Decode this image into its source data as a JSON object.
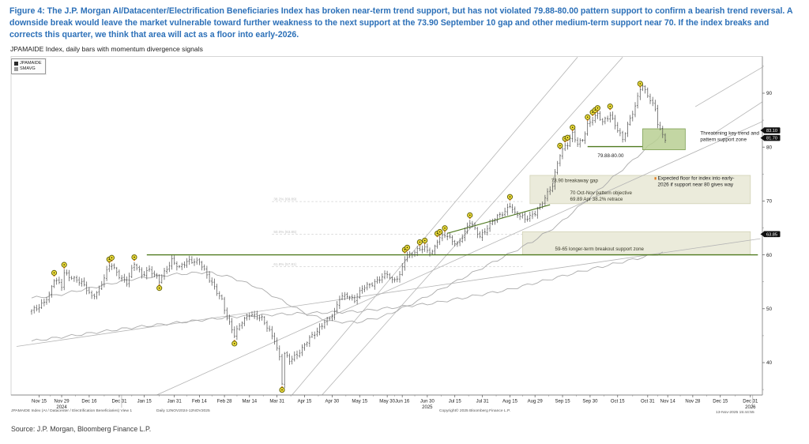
{
  "header": {
    "caption": "Figure 4: The J.P. Morgan AI/Datacenter/Electrification Beneficiaries Index has broken near-term trend support, but has not violated 79.88-80.00 pattern support to confirm a bearish trend reversal. A downside break would leave the market vulnerable toward further weakness to the next support at the 73.90 September 10 gap and other medium-term support near 70. If the index breaks and corrects this quarter, we think that area will act as a floor into early-2026.",
    "subtitle": "JPAMAIDE Index, daily bars with momentum divergence signals"
  },
  "source": {
    "text": "Source: J.P. Morgan, Bloomberg Finance L.P."
  },
  "chart_data": {
    "type": "bar",
    "subtype": "daily-ohlc-bars-with-signals",
    "title": "JPAMAIDE Index, daily bars with momentum divergence signals",
    "last_price": 81.7,
    "legend": {
      "items": [
        {
          "label": "JPAMAIDE",
          "color": "#2b2b2b"
        },
        {
          "label": "SMAVG",
          "color": "#9a9a9a"
        }
      ]
    },
    "y_axis": {
      "major_ticks": [
        90,
        80,
        70,
        60,
        50,
        40
      ],
      "minor_ticks": [
        95,
        85,
        75,
        65,
        55,
        45,
        35
      ]
    },
    "axis_tags": [
      {
        "value": "83.10",
        "price": 83.1
      },
      {
        "value": "81.70",
        "price": 81.7
      },
      {
        "value": "63.85",
        "price": 63.85
      }
    ],
    "x_axis": {
      "ticks": [
        {
          "label": "Nov 15",
          "day": 3
        },
        {
          "label": "Nov 29",
          "day": 12
        },
        {
          "label": "Dec 16",
          "day": 23
        },
        {
          "label": "Dec 31",
          "day": 35
        },
        {
          "label": "Jan 15",
          "day": 45
        },
        {
          "label": "Jan 31",
          "day": 57
        },
        {
          "label": "Feb 14",
          "day": 67
        },
        {
          "label": "Feb 28",
          "day": 77
        },
        {
          "label": "Mar 14",
          "day": 87
        },
        {
          "label": "Mar 31",
          "day": 98
        },
        {
          "label": "Apr 15",
          "day": 109
        },
        {
          "label": "Apr 30",
          "day": 120
        },
        {
          "label": "May 15",
          "day": 131
        },
        {
          "label": "May 30",
          "day": 142
        },
        {
          "label": "Jun 16",
          "day": 148
        },
        {
          "label": "Jun 30",
          "day": 158
        },
        {
          "label": "Jul 15",
          "day": 169
        },
        {
          "label": "Jul 31",
          "day": 180
        },
        {
          "label": "Aug 15",
          "day": 191
        },
        {
          "label": "Aug 29",
          "day": 201
        },
        {
          "label": "Sep 15",
          "day": 212
        },
        {
          "label": "Sep 30",
          "day": 223
        },
        {
          "label": "Oct 15",
          "day": 234
        },
        {
          "label": "Oct 31",
          "day": 246
        },
        {
          "label": "Nov 14",
          "day": 254
        },
        {
          "label": "Nov 28",
          "day": 264
        },
        {
          "label": "Dec 15",
          "day": 275
        },
        {
          "label": "Dec 31",
          "day": 287
        }
      ],
      "years": [
        {
          "label": "2024",
          "day": 12
        },
        {
          "label": "2025",
          "day": 158
        },
        {
          "label": "2026",
          "day": 287
        }
      ],
      "year_separators": [
        35,
        287
      ]
    },
    "price_path": [
      [
        0,
        49.5
      ],
      [
        3,
        50.5
      ],
      [
        7,
        52.5
      ],
      [
        9,
        55.3
      ],
      [
        12,
        54.2
      ],
      [
        13,
        56.8
      ],
      [
        17,
        55.6
      ],
      [
        21,
        54.2
      ],
      [
        24,
        52.4
      ],
      [
        27,
        53.6
      ],
      [
        31,
        57.8
      ],
      [
        32,
        58.1
      ],
      [
        34,
        56.8
      ],
      [
        38,
        54.8
      ],
      [
        41,
        58.2
      ],
      [
        44,
        56.4
      ],
      [
        47,
        57.4
      ],
      [
        51,
        55.0
      ],
      [
        56,
        59.2
      ],
      [
        59,
        57.6
      ],
      [
        63,
        58.8
      ],
      [
        67,
        59.0
      ],
      [
        71,
        55.2
      ],
      [
        76,
        51.8
      ],
      [
        78,
        48.5
      ],
      [
        81,
        44.9
      ],
      [
        84,
        47.6
      ],
      [
        87,
        49.2
      ],
      [
        92,
        48.0
      ],
      [
        97,
        44.4
      ],
      [
        99,
        41.0
      ],
      [
        100,
        36.3
      ],
      [
        101,
        41.5
      ],
      [
        103,
        40.2
      ],
      [
        106,
        41.6
      ],
      [
        110,
        44.0
      ],
      [
        114,
        45.6
      ],
      [
        117,
        47.8
      ],
      [
        121,
        49.2
      ],
      [
        123,
        51.8
      ],
      [
        126,
        52.6
      ],
      [
        129,
        51.8
      ],
      [
        132,
        53.6
      ],
      [
        136,
        54.6
      ],
      [
        139,
        55.8
      ],
      [
        142,
        56.4
      ],
      [
        144,
        54.9
      ],
      [
        147,
        56.2
      ],
      [
        149,
        59.6
      ],
      [
        150,
        60.0
      ],
      [
        153,
        60.3
      ],
      [
        155,
        61.0
      ],
      [
        157,
        61.3
      ],
      [
        160,
        60.6
      ],
      [
        162,
        62.6
      ],
      [
        163,
        62.9
      ],
      [
        165,
        63.6
      ],
      [
        168,
        62.8
      ],
      [
        170,
        62.1
      ],
      [
        173,
        64.0
      ],
      [
        175,
        66.0
      ],
      [
        179,
        63.6
      ],
      [
        182,
        65.0
      ],
      [
        186,
        67.0
      ],
      [
        189,
        68.2
      ],
      [
        191,
        69.4
      ],
      [
        193,
        67.6
      ],
      [
        197,
        66.6
      ],
      [
        201,
        68.0
      ],
      [
        204,
        69.6
      ],
      [
        206,
        71.2
      ],
      [
        208,
        72.9
      ],
      [
        209,
        75.2
      ],
      [
        210,
        77.2
      ],
      [
        211,
        78.9
      ],
      [
        213,
        80.2
      ],
      [
        214,
        80.4
      ],
      [
        216,
        82.3
      ],
      [
        218,
        80.6
      ],
      [
        220,
        81.6
      ],
      [
        222,
        84.2
      ],
      [
        224,
        85.1
      ],
      [
        225,
        85.5
      ],
      [
        226,
        85.9
      ],
      [
        228,
        84.6
      ],
      [
        231,
        86.2
      ],
      [
        233,
        84.2
      ],
      [
        236,
        81.2
      ],
      [
        238,
        84.0
      ],
      [
        241,
        87.8
      ],
      [
        243,
        91.0
      ],
      [
        244,
        91.4
      ],
      [
        245,
        90.2
      ],
      [
        247,
        88.6
      ],
      [
        249,
        87.0
      ],
      [
        250,
        84.6
      ],
      [
        251,
        83.4
      ],
      [
        252,
        82.4
      ],
      [
        253,
        81.7
      ]
    ],
    "signals": [
      [
        9,
        55.9,
        "h"
      ],
      [
        13,
        57.4,
        "h"
      ],
      [
        31,
        58.4,
        "h"
      ],
      [
        32,
        58.7,
        "h"
      ],
      [
        41,
        58.8,
        "h"
      ],
      [
        51,
        54.6,
        "l"
      ],
      [
        81,
        44.3,
        "l"
      ],
      [
        100,
        35.7,
        "l"
      ],
      [
        149,
        60.2,
        "h"
      ],
      [
        150,
        60.6,
        "h"
      ],
      [
        155,
        61.6,
        "h"
      ],
      [
        157,
        61.9,
        "h"
      ],
      [
        162,
        63.2,
        "h"
      ],
      [
        163,
        63.5,
        "h"
      ],
      [
        165,
        64.2,
        "h"
      ],
      [
        175,
        66.6,
        "h"
      ],
      [
        191,
        70.0,
        "h"
      ],
      [
        211,
        79.5,
        "h"
      ],
      [
        213,
        80.8,
        "h"
      ],
      [
        214,
        81.0,
        "h"
      ],
      [
        216,
        82.9,
        "h"
      ],
      [
        222,
        84.8,
        "h"
      ],
      [
        224,
        85.7,
        "h"
      ],
      [
        225,
        86.1,
        "h"
      ],
      [
        226,
        86.5,
        "h"
      ],
      [
        231,
        86.8,
        "h"
      ],
      [
        243,
        91.0,
        "h"
      ]
    ],
    "ma_fast": [
      [
        0,
        52.0
      ],
      [
        10,
        52.5
      ],
      [
        25,
        54.0
      ],
      [
        40,
        55.5
      ],
      [
        55,
        56.3
      ],
      [
        70,
        56.8
      ],
      [
        80,
        55.8
      ],
      [
        90,
        54.0
      ],
      [
        100,
        51.5
      ],
      [
        110,
        49.0
      ],
      [
        120,
        47.6
      ],
      [
        130,
        47.5
      ],
      [
        140,
        48.5
      ],
      [
        150,
        50.5
      ],
      [
        160,
        52.8
      ],
      [
        170,
        55.2
      ],
      [
        180,
        57.6
      ],
      [
        190,
        60.0
      ],
      [
        200,
        62.5
      ],
      [
        210,
        65.5
      ],
      [
        220,
        69.5
      ],
      [
        230,
        73.5
      ],
      [
        240,
        77.5
      ],
      [
        248,
        80.8
      ],
      [
        253,
        83.1
      ]
    ],
    "ma_slow": [
      [
        0,
        44.0
      ],
      [
        40,
        46.5
      ],
      [
        80,
        48.5
      ],
      [
        100,
        49.0
      ],
      [
        130,
        49.5
      ],
      [
        160,
        51.0
      ],
      [
        190,
        53.5
      ],
      [
        220,
        57.0
      ],
      [
        253,
        60.5
      ]
    ],
    "trendlines": [
      [
        104,
        34.0,
        218,
        96.7
      ],
      [
        116,
        34.0,
        236,
        96.7
      ],
      [
        50,
        34.0,
        292,
        84.8
      ],
      [
        -6,
        43.0,
        291,
        63.0
      ],
      [
        265,
        87.5,
        299,
        96.8
      ],
      [
        273,
        82.7,
        300,
        90.9
      ]
    ],
    "fib_span_days": [
      96,
      196
    ],
    "fib_levels": [
      {
        "label": "38.2% (69.89)",
        "price": 69.89
      },
      {
        "label": "50.0% (63.85)",
        "price": 63.85
      },
      {
        "label": "61.8% (57.81)",
        "price": 57.81
      }
    ],
    "levels": {
      "breakout_line": {
        "price": 60.0,
        "from_day": 46,
        "to_day": 290
      },
      "pattern_support": {
        "price": 80.1,
        "from_day": 222,
        "to_day": 244
      },
      "neckline": [
        166,
        64.0,
        207,
        69.3
      ],
      "gap_marker": {
        "day": 209,
        "p1": 73.2,
        "p2": 74.5
      }
    },
    "zones": [
      {
        "name": "expected-floor-band",
        "from_day": 199,
        "to_day": 287,
        "p1": 69.5,
        "p2": 74.75,
        "fill": "#eaead9",
        "border": "#d2d2b6"
      },
      {
        "name": "breakout-band",
        "from_day": 196,
        "to_day": 287,
        "p1": 60.05,
        "p2": 64.3,
        "fill": "#eaead9",
        "border": "#d2d2b6"
      },
      {
        "name": "key-support-box",
        "from_day": 244,
        "to_day": 261,
        "p1": 79.5,
        "p2": 83.4,
        "fill": "#b9cf93",
        "border": "#7fa055"
      }
    ],
    "annotations": [
      {
        "name": "threatening-note",
        "lines": [
          "Threatening key trend and",
          "pattern support zone"
        ],
        "day": 267,
        "price": 82.9,
        "size": 6.4,
        "color": "#1a1a1a"
      },
      {
        "name": "gap-label",
        "lines": [
          "73.90 breakaway gap"
        ],
        "day": 207.5,
        "price": 74.1,
        "size": 6.2,
        "color": "#3a3a2a"
      },
      {
        "name": "objective-label",
        "lines": [
          "70 Oct-Nov pattern objective",
          "69.89 Apr 38.2% retrace"
        ],
        "day": 215,
        "price": 71.8,
        "size": 6.2,
        "color": "#3a3a2a"
      },
      {
        "name": "expected-floor-note",
        "lines": [
          "Expected floor for index into early-",
          "2026 if support near 80 gives way"
        ],
        "day": 250,
        "price": 74.5,
        "size": 6.4,
        "color": "#1a1a1a",
        "marker": "#e07818"
      },
      {
        "name": "breakout-zone-label",
        "lines": [
          "59-65 longer-term breakout support zone"
        ],
        "day": 209,
        "price": 61.4,
        "size": 6.2,
        "color": "#3a3a2a"
      },
      {
        "name": "pattern-range-label",
        "lines": [
          "79.88-80.00"
        ],
        "day": 226,
        "price": 78.7,
        "size": 6.2,
        "color": "#1a1a1a"
      }
    ],
    "colors": {
      "bars": "#4d4d4d",
      "ma": "#ababab",
      "trendline": "#b5b5b5",
      "green_dark": "#4f7a1f",
      "signal_fill": "#f2e03c",
      "signal_ring": "#67670f",
      "signal_dot": "#e5821e",
      "tag_bg": "#101010"
    },
    "footer": {
      "left": "JPAMAIDE Index (AI / Datacenter / Electrification Beneficiaries) View 1",
      "mid": "Daily 12NOV2024-12NOV2025",
      "copyright": "Copyright© 2025 Bloomberg Finance L.P.",
      "timestamp": "13-Nov-2025 15:44:55"
    }
  }
}
